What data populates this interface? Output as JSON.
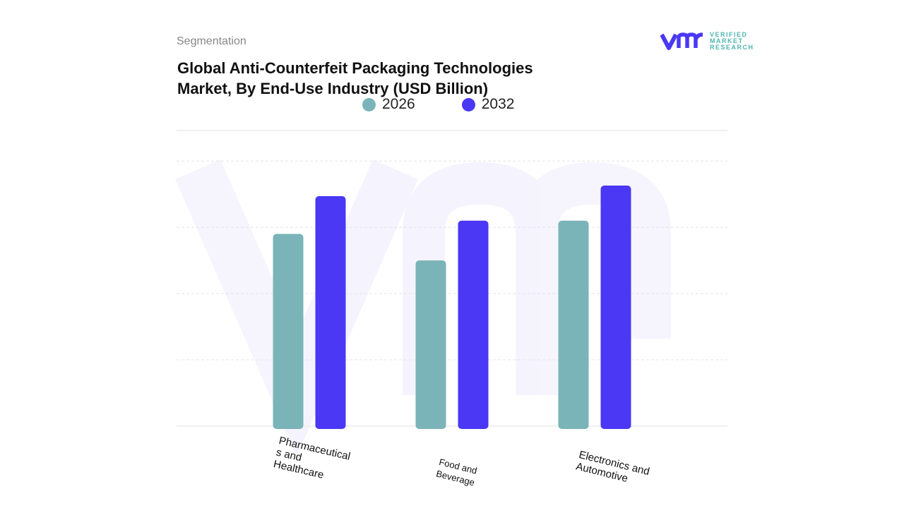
{
  "header": {
    "section": "Segmentation",
    "title_line1": "Global Anti-Counterfeit Packaging Technologies",
    "title_line2": "Market, By End-Use Industry (USD Billion)"
  },
  "logo": {
    "mark": "vmr",
    "line1": "VERIFIED",
    "line2": "MARKET",
    "line3": "RESEARCH"
  },
  "chart_data": {
    "type": "bar",
    "title": "Global Anti-Counterfeit Packaging Technologies Market, By End-Use Industry (USD Billion)",
    "categories": [
      "Pharmaceuticals and Healthcare",
      "Food and Beverage",
      "Electronics and Automotive"
    ],
    "category_labels": [
      "Pharmaceutical\ns and\nHealthcare",
      "Food and\nBeverage",
      "Electronics and\nAutomotive"
    ],
    "series": [
      {
        "name": "2026",
        "color": "#7ab4b8",
        "values": [
          2.9,
          2.5,
          3.1
        ]
      },
      {
        "name": "2032",
        "color": "#4a38f5",
        "values": [
          3.47,
          3.1,
          3.63
        ]
      }
    ],
    "ylim": [
      0,
      4.46
    ],
    "y_axis_labels_shown": false,
    "grid": true,
    "legend_position": "top-center"
  }
}
